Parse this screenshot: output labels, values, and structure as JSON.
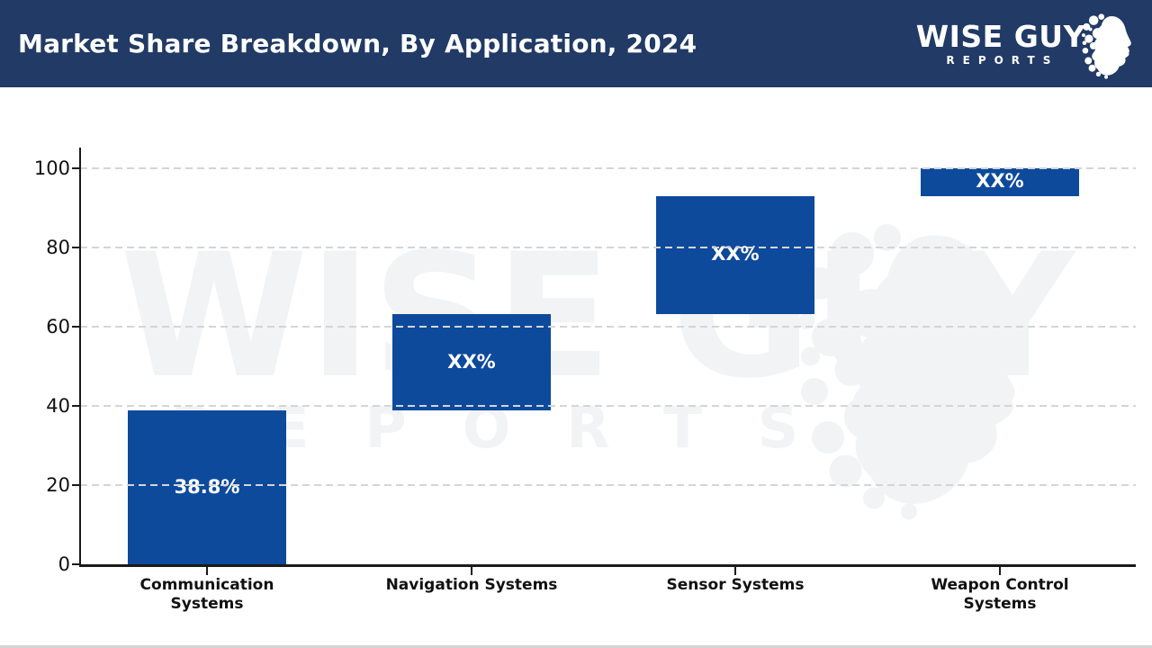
{
  "header": {
    "title": "Market Share Breakdown, By Application, 2024",
    "logo": {
      "line1": "WISE GUY",
      "line2": "REPORTS"
    }
  },
  "watermark": {
    "line1": "WISE GUY",
    "line2": "REPORTS"
  },
  "colors": {
    "header_bg": "#213a66",
    "bar": "#0d4a9c",
    "grid": "#d5d5d5",
    "axis": "#1a1a1a",
    "watermark": "#f2f3f5",
    "bar_label": "#ffffff",
    "footer_line": "#d4d4d4"
  },
  "chart_data": {
    "type": "bar",
    "subtype": "waterfall",
    "title": "Market Share Breakdown, By Application, 2024",
    "categories": [
      "Communication\nSystems",
      "Navigation Systems",
      "Sensor Systems",
      "Weapon Control\nSystems"
    ],
    "cumulative_start": [
      0,
      38.8,
      63.2,
      93.0
    ],
    "values": [
      38.8,
      24.4,
      29.8,
      7.0
    ],
    "bar_labels": [
      "38.8%",
      "XX%",
      "XX%",
      "XX%"
    ],
    "xlabel": "",
    "ylabel": "",
    "ylim": [
      0,
      105
    ],
    "yticks": [
      0,
      20,
      40,
      60,
      80,
      100
    ],
    "grid": "horizontal-dashed",
    "legend": "none",
    "bar_color": "#0d4a9c"
  }
}
